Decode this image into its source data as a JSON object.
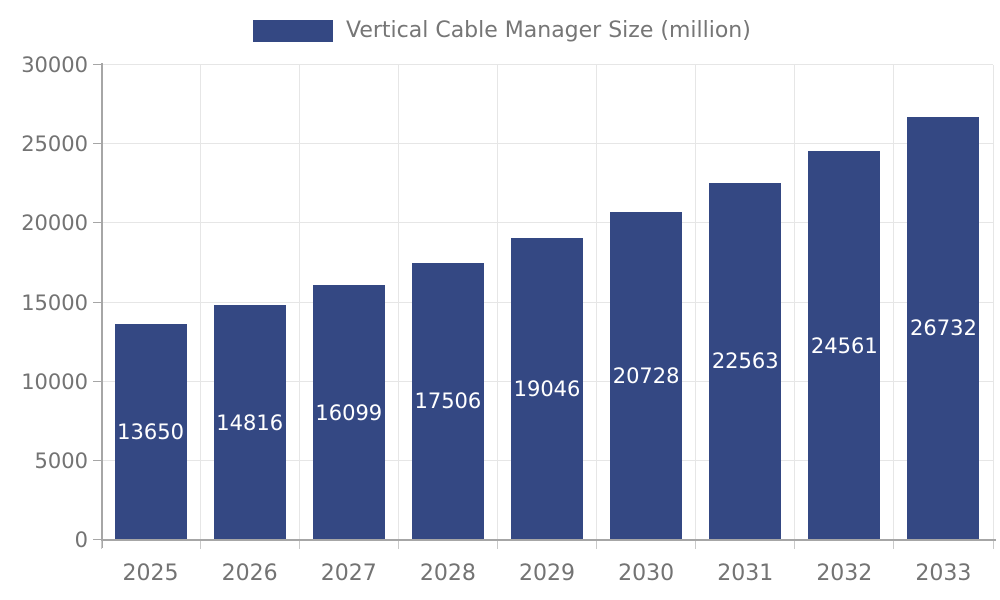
{
  "chart_data": {
    "type": "bar",
    "legend": "Vertical Cable Manager Size (million)",
    "categories": [
      "2025",
      "2026",
      "2027",
      "2028",
      "2029",
      "2030",
      "2031",
      "2032",
      "2033"
    ],
    "values": [
      13650,
      14816,
      16099,
      17506,
      19046,
      20728,
      22563,
      24561,
      26732
    ],
    "value_labels": [
      "13650",
      "14816",
      "16099",
      "17506",
      "19046",
      "20728",
      "22563",
      "24561",
      "26732"
    ],
    "xlabel": "",
    "ylabel": "",
    "ylim": [
      0,
      30000
    ],
    "yticks": [
      0,
      5000,
      10000,
      15000,
      20000,
      25000,
      30000
    ],
    "ytick_labels": [
      "0",
      "5000",
      "10000",
      "15000",
      "20000",
      "25000",
      "30000"
    ],
    "grid": true,
    "legend_position": "top-center",
    "colors": {
      "bar": "#344883",
      "value_label": "#ffffff",
      "axis_text": "#737373",
      "legend_text": "#767676",
      "gridline": "#e6e6e6",
      "axis_line": "#a6a6a6",
      "x_tick": "#c9c9c9",
      "background": "#ffffff"
    }
  }
}
